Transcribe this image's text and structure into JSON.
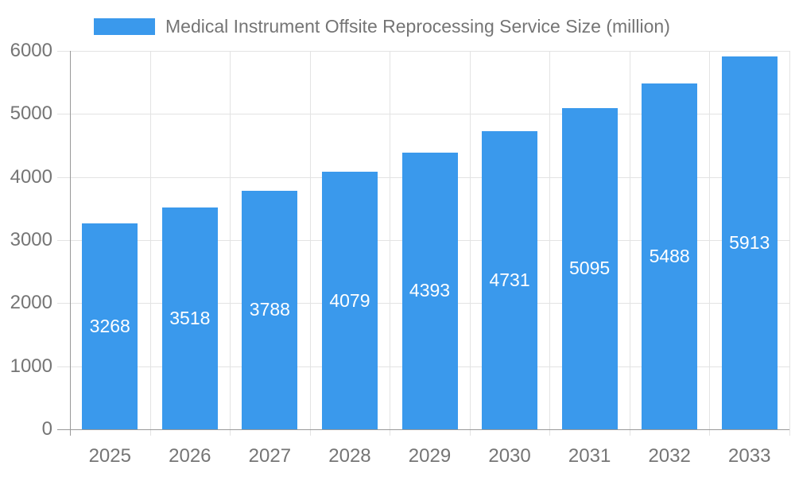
{
  "chart_data": {
    "type": "bar",
    "series_name": "Medical Instrument Offsite Reprocessing Service Size (million)",
    "categories": [
      "2025",
      "2026",
      "2027",
      "2028",
      "2029",
      "2030",
      "2031",
      "2032",
      "2033"
    ],
    "values": [
      3268,
      3518,
      3788,
      4079,
      4393,
      4731,
      5095,
      5488,
      5913
    ],
    "title": "Medical Instrument Offsite Reprocessing Service Size (million)",
    "xlabel": "",
    "ylabel": "",
    "ylim": [
      0,
      6000
    ],
    "yticks": [
      0,
      1000,
      2000,
      3000,
      4000,
      5000,
      6000
    ],
    "grid": true,
    "legend_position": "top",
    "bar_label_position": "inside-center",
    "colors": {
      "bar": "#3A99EC",
      "bar_label": "#FFFFFF",
      "axis_text": "#757575",
      "grid_line": "#E3E3E3",
      "axis_line": "#999999",
      "legend_text": "#757575",
      "background": "#FFFFFF"
    }
  }
}
